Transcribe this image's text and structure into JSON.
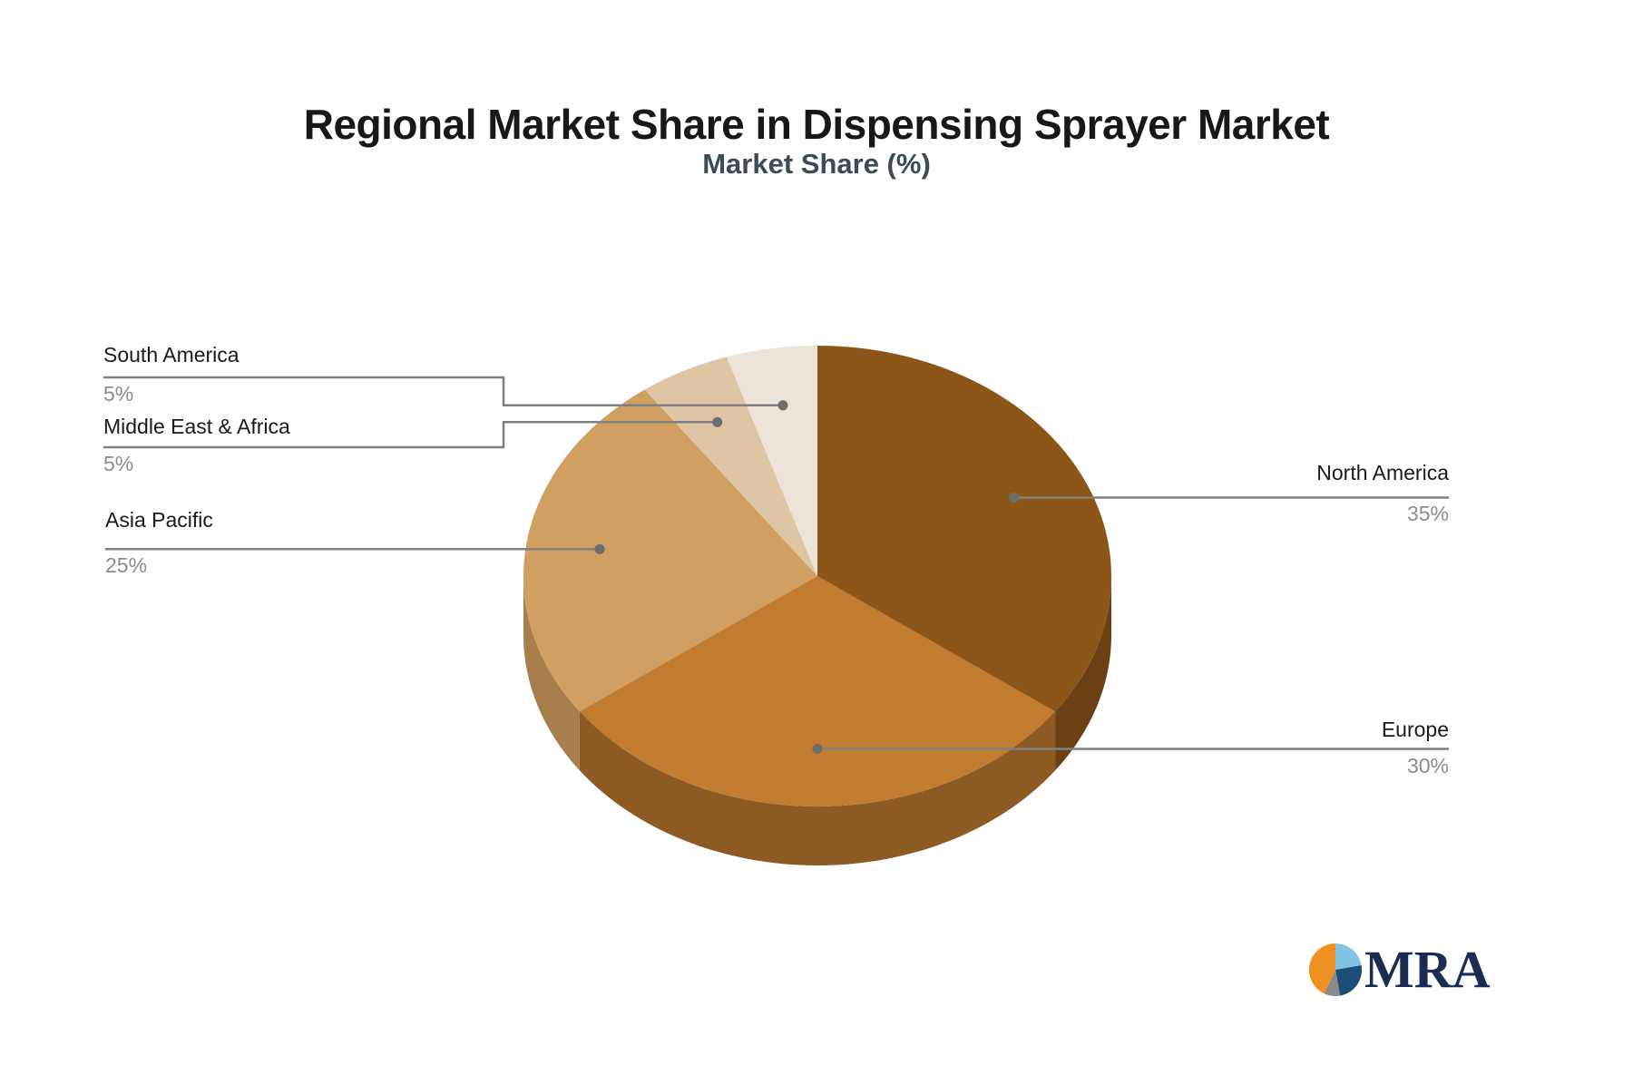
{
  "header": {
    "title": "Regional Market Share in Dispensing Sprayer Market",
    "subtitle": "Market Share (%)"
  },
  "chart_data": {
    "type": "pie",
    "style": "3d-pie",
    "title": "Regional Market Share in Dispensing Sprayer Market",
    "subtitle": "Market Share (%)",
    "unit": "%",
    "total": 100,
    "direction": "clockwise",
    "start_angle_deg": 0,
    "legend_position": "none",
    "segments": [
      {
        "label": "North America",
        "value": 35,
        "pct": "35%",
        "color": "#8C5618",
        "side_color": "#6B4113"
      },
      {
        "label": "Europe",
        "value": 30,
        "pct": "30%",
        "color": "#C17C30",
        "side_color": "#8D5A23"
      },
      {
        "label": "Asia Pacific",
        "value": 25,
        "pct": "25%",
        "color": "#D29F62",
        "side_color": "#A87E4C"
      },
      {
        "label": "Middle East & Africa",
        "value": 5,
        "pct": "5%",
        "color": "#DEC6A4",
        "side_color": "#B29D83"
      },
      {
        "label": "South America",
        "value": 5,
        "pct": "5%",
        "color": "#EDE4D9",
        "side_color": "#BEB7AE"
      }
    ],
    "colors": {
      "connector_line": "#808080",
      "connector_dot": "#6D6D6D",
      "label_text": "#1A1A1A",
      "label_value": "#8C8C8C",
      "title": "#181818",
      "subtitle": "#3D4B57",
      "background": "#FFFFFF"
    }
  },
  "logo": {
    "text": "MRA",
    "text_color": "#1B2B52",
    "icon_colors": {
      "orange": "#F09022",
      "light_blue": "#82C3E6",
      "navy": "#1C4F77",
      "gray": "#8A8A8A"
    }
  }
}
